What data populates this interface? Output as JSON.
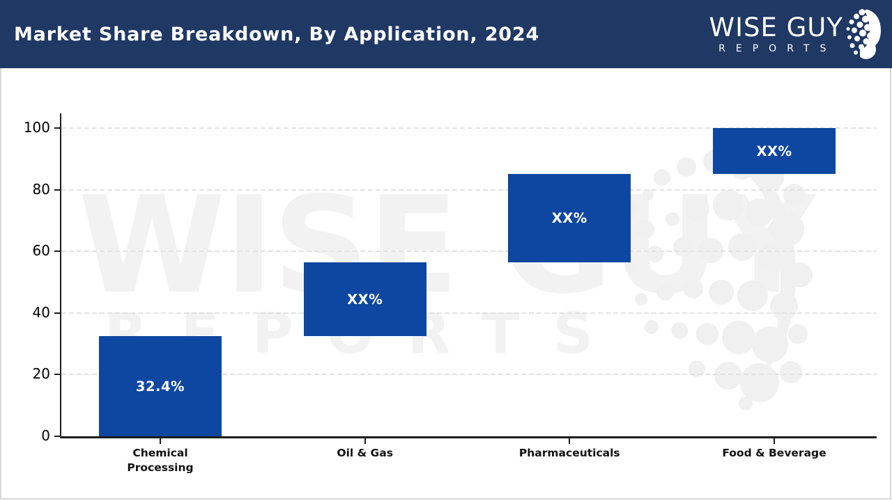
{
  "header": {
    "title": "Market Share Breakdown, By Application, 2024",
    "background_color": "#1f3864",
    "logo": {
      "line1": "WISE GUY",
      "line2": "REPORTS"
    }
  },
  "watermark": {
    "line1": "WISE GUY",
    "line2": "REPORTS"
  },
  "chart_data": {
    "type": "bar",
    "subtype": "waterfall",
    "title": "Market Share Breakdown, By Application, 2024",
    "categories": [
      "Chemical Processing",
      "Oil & Gas",
      "Pharmaceuticals",
      "Food & Beverage"
    ],
    "segments": [
      {
        "category": "Chemical Processing",
        "start": 0,
        "end": 32.4,
        "label": "32.4%"
      },
      {
        "category": "Oil & Gas",
        "start": 32.4,
        "end": 56.5,
        "label": "XX%"
      },
      {
        "category": "Pharmaceuticals",
        "start": 56.5,
        "end": 85,
        "label": "XX%"
      },
      {
        "category": "Food & Beverage",
        "start": 85,
        "end": 100,
        "label": "XX%"
      }
    ],
    "y_ticks": [
      0,
      20,
      40,
      60,
      80,
      100
    ],
    "ylim": [
      0,
      105
    ],
    "xlabel": "",
    "ylabel": "",
    "grid": "horizontal-dashed",
    "legend": "none",
    "bar_color": "#0d47a1",
    "bar_label_color": "#ffffff",
    "axis_color": "#1c1c1c",
    "grid_color": "#e2e2e2",
    "tick_label_color": "#000000",
    "category_label_color": "#111111"
  }
}
